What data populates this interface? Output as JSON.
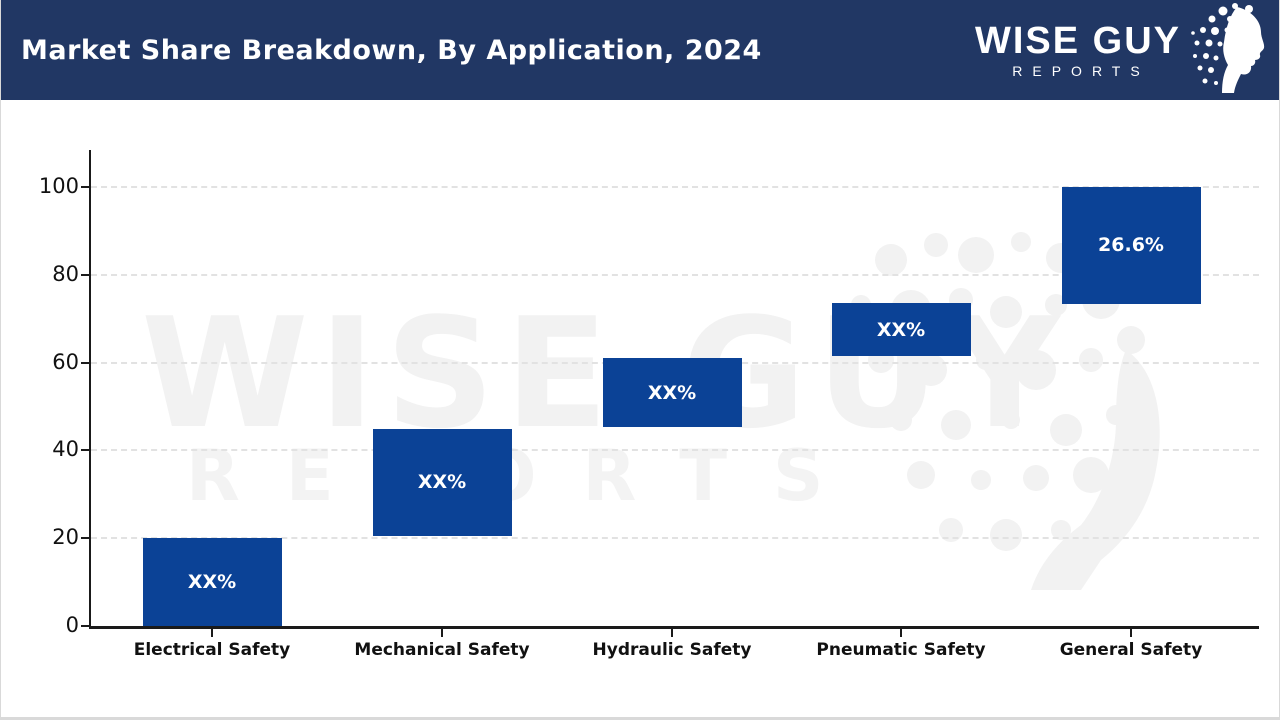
{
  "header": {
    "title": "Market Share Breakdown, By Application, 2024",
    "logo": {
      "line1": "WISE GUY",
      "line2": "REPORTS"
    }
  },
  "watermark": {
    "line1": "WISE GUY",
    "line2": "REPORTS"
  },
  "colors": {
    "header_bg": "#213764",
    "bar": "#0b4296",
    "axis": "#1a1a1a",
    "grid": "#e2e2e2",
    "tick_label": "#111111",
    "bar_label": "#ffffff",
    "watermark": "#f2f2f2"
  },
  "chart_data": {
    "type": "bar",
    "subtype": "waterfall",
    "title": "Market Share Breakdown, By Application, 2024",
    "categories": [
      "Electrical Safety",
      "Mechanical Safety",
      "Hydraulic Safety",
      "Pneumatic Safety",
      "General Safety"
    ],
    "segments": [
      {
        "category": "Electrical Safety",
        "start": 0,
        "end": 20,
        "label": "XX%"
      },
      {
        "category": "Mechanical Safety",
        "start": 20.5,
        "end": 44.9,
        "label": "XX%"
      },
      {
        "category": "Hydraulic Safety",
        "start": 45.3,
        "end": 61.0,
        "label": "XX%"
      },
      {
        "category": "Pneumatic Safety",
        "start": 61.5,
        "end": 73.5,
        "label": "XX%"
      },
      {
        "category": "General Safety",
        "start": 73.4,
        "end": 100,
        "label": "26.6%"
      }
    ],
    "xlabel": "",
    "ylabel": "",
    "yticks": [
      0,
      20,
      40,
      60,
      80,
      100
    ],
    "ylim": [
      0,
      108
    ],
    "grid": "dashed-horizontal",
    "legend": "none"
  }
}
